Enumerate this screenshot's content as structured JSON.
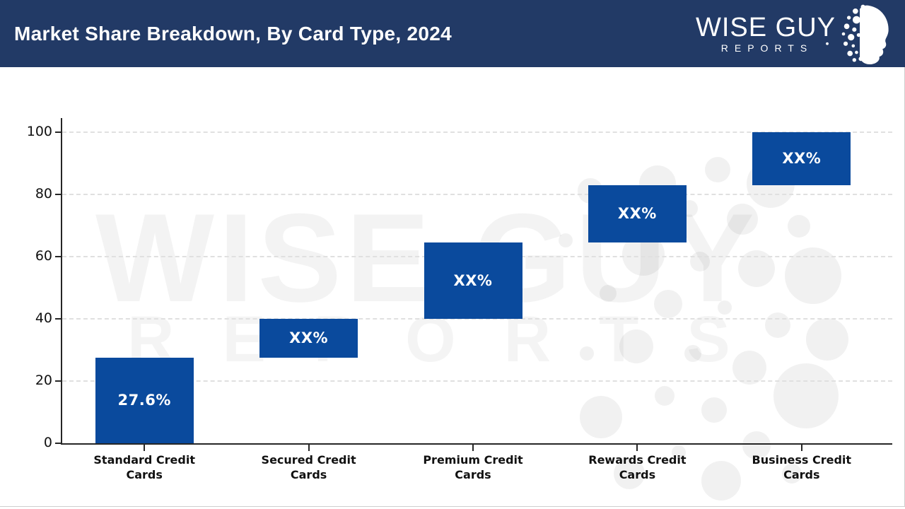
{
  "header": {
    "title": "Market Share Breakdown, By Card Type, 2024",
    "bg_color": "#223A66",
    "logo": {
      "line1": "WISE GUY",
      "line2": "REPORTS"
    }
  },
  "watermark": {
    "line1": "WISE GUY",
    "line2": "REPORTS"
  },
  "chart_data": {
    "type": "bar",
    "variant": "waterfall",
    "title": "Market Share Breakdown, By Card Type, 2024",
    "categories": [
      "Standard Credit Cards",
      "Secured Credit Cards",
      "Premium Credit Cards",
      "Rewards Credit Cards",
      "Business Credit Cards"
    ],
    "bars": [
      {
        "category": "Standard Credit Cards",
        "start": 0,
        "end": 27.6,
        "label": "27.6%"
      },
      {
        "category": "Secured Credit Cards",
        "start": 27.6,
        "end": 40,
        "label": "XX%"
      },
      {
        "category": "Premium Credit Cards",
        "start": 40,
        "end": 64.5,
        "label": "XX%"
      },
      {
        "category": "Rewards Credit Cards",
        "start": 64.5,
        "end": 83,
        "label": "XX%"
      },
      {
        "category": "Business Credit Cards",
        "start": 83,
        "end": 100,
        "label": "XX%"
      }
    ],
    "xlabel": "",
    "ylabel": "",
    "yticks": [
      0,
      20,
      40,
      60,
      80,
      100
    ],
    "ylim": [
      0,
      104.5
    ],
    "grid": "horizontal-dashed",
    "legend": "none",
    "bar_color": "#0A4A9D",
    "bar_label_color": "#FFFFFF"
  }
}
